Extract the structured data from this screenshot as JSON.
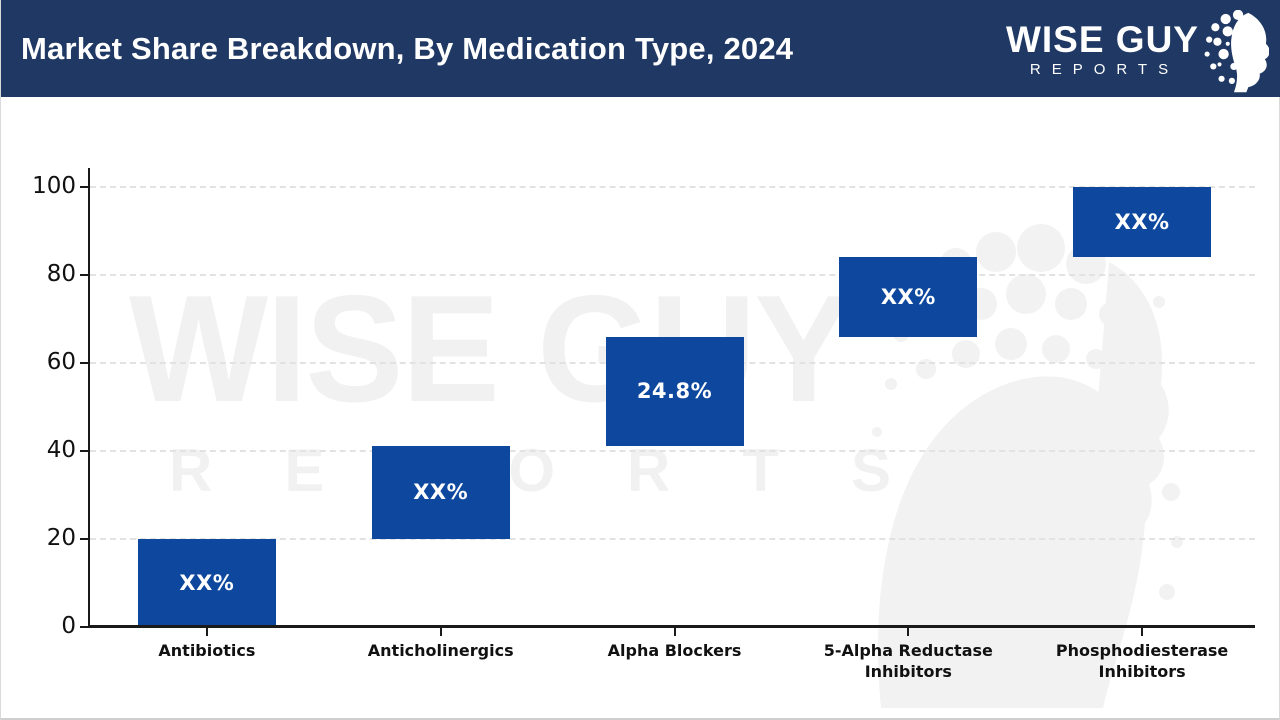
{
  "header": {
    "title": "Market Share Breakdown, By Medication Type, 2024",
    "logo": {
      "line1": "WISE GUY",
      "line2": "REPORTS"
    }
  },
  "watermark": {
    "line1": "WISE GUY",
    "line2": "REPORTS"
  },
  "colors": {
    "header_bg": "#1f3864",
    "bar": "#0d489e",
    "bar_label": "#ffffff",
    "grid": "#e2e2e2",
    "axis": "#1a1a1a",
    "watermark": "#f1f1f2"
  },
  "chart_data": {
    "type": "bar",
    "subtype": "waterfall",
    "title": "Market Share Breakdown, By Medication Type, 2024",
    "categories": [
      "Antibiotics",
      "Anticholinergics",
      "Alpha Blockers",
      "5-Alpha Reductase Inhibitors",
      "Phosphodiesterase Inhibitors"
    ],
    "segments": [
      {
        "category": "Antibiotics",
        "start": 0,
        "end": 20,
        "label": "XX%"
      },
      {
        "category": "Anticholinergics",
        "start": 20,
        "end": 41.2,
        "label": "XX%"
      },
      {
        "category": "Alpha Blockers",
        "start": 41.2,
        "end": 66,
        "label": "24.8%"
      },
      {
        "category": "5-Alpha Reductase Inhibitors",
        "start": 66,
        "end": 84,
        "label": "XX%"
      },
      {
        "category": "Phosphodiesterase Inhibitors",
        "start": 84,
        "end": 100,
        "label": "XX%"
      }
    ],
    "xlabel": "",
    "ylabel": "",
    "ylim": [
      0,
      100
    ],
    "yticks": [
      0,
      20,
      40,
      60,
      80,
      100
    ],
    "grid": "horizontal-dashed",
    "legend": "none"
  }
}
